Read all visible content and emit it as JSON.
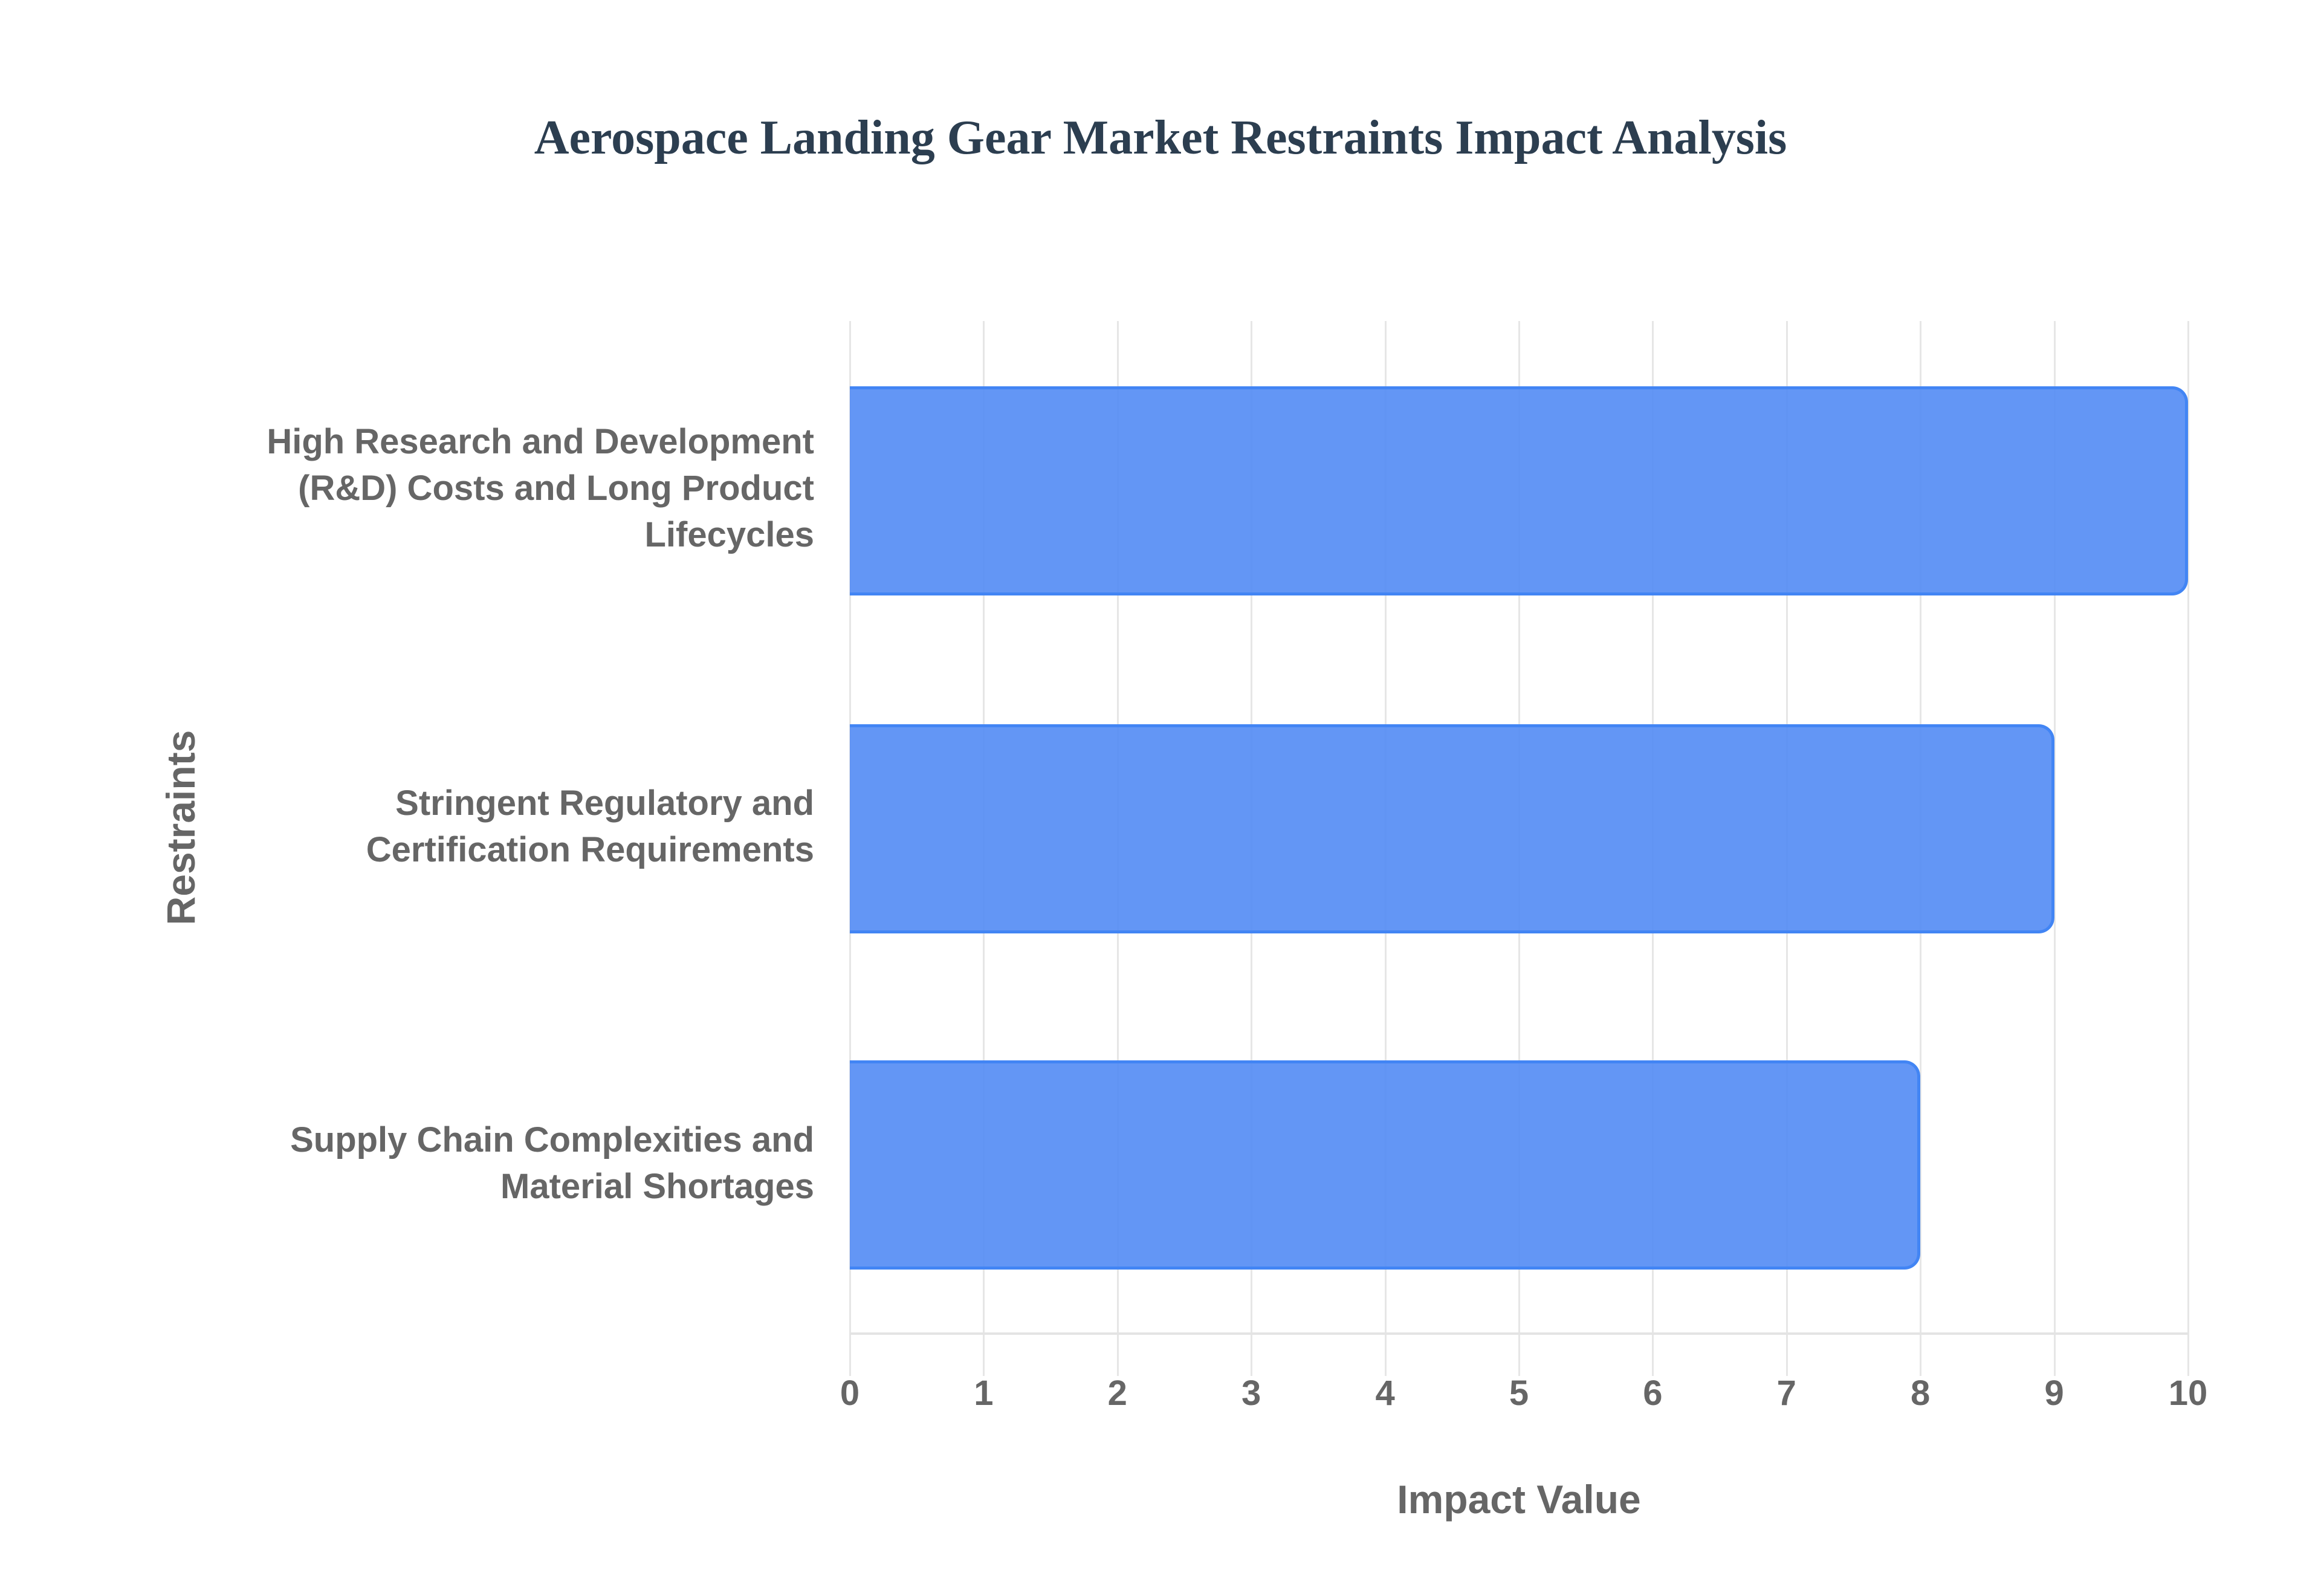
{
  "chart_data": {
    "type": "bar",
    "orientation": "horizontal",
    "title": "Aerospace Landing Gear Market Restraints Impact Analysis",
    "xlabel": "Impact Value",
    "ylabel": "Restraints",
    "categories": [
      "High Research and Development (R&D) Costs and Long Product Lifecycles",
      "Stringent Regulatory and Certification Requirements",
      "Supply Chain Complexities and Material Shortages"
    ],
    "category_lines": [
      [
        "High Research and Development",
        "(R&D) Costs and Long Product",
        "Lifecycles"
      ],
      [
        "Stringent Regulatory and",
        "Certification Requirements"
      ],
      [
        "Supply Chain Complexities and",
        "Material Shortages"
      ]
    ],
    "values": [
      10,
      9,
      8
    ],
    "xlim": [
      0,
      10
    ],
    "xticks": [
      "0",
      "1",
      "2",
      "3",
      "4",
      "5",
      "6",
      "7",
      "8",
      "9",
      "10"
    ],
    "grid": true,
    "legend": null,
    "colors": {
      "bar_fill": "#6399f5",
      "bar_border": "#4285f4",
      "title": "#2c3e50",
      "axis_text": "#666666",
      "grid": "#e6e6e6"
    }
  }
}
